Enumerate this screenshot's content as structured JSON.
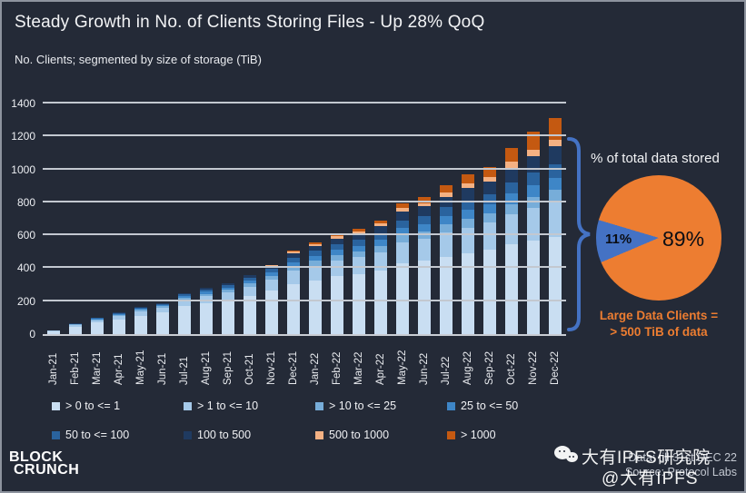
{
  "header": {
    "title": "Steady Growth in No. of Clients Storing Files - Up 28% QoQ",
    "subtitle": "No. Clients; segmented by size of storage (TiB)"
  },
  "chart_data": {
    "type": "bar",
    "stacked": true,
    "categories": [
      "Jan-21",
      "Feb-21",
      "Mar-21",
      "Apr-21",
      "May-21",
      "Jun-21",
      "Jul-21",
      "Aug-21",
      "Sep-21",
      "Oct-21",
      "Nov-21",
      "Dec-21",
      "Jan-22",
      "Feb-22",
      "Mar-22",
      "Apr-22",
      "May-22",
      "Jun-22",
      "Jul-22",
      "Aug-22",
      "Sep-22",
      "Oct-22",
      "Nov-22",
      "Dec-22"
    ],
    "series": [
      {
        "name": "> 0 to <= 1",
        "color": "#c9def2",
        "values": [
          17,
          46,
          69,
          90,
          113,
          130,
          169,
          186,
          203,
          230,
          263,
          304,
          327,
          351,
          366,
          386,
          430,
          444,
          470,
          491,
          514,
          545,
          568,
          589
        ]
      },
      {
        "name": "> 1 to <= 10",
        "color": "#a5c9e9",
        "values": [
          4,
          10,
          16,
          21,
          26,
          30,
          40,
          45,
          50,
          58,
          67,
          81,
          89,
          97,
          102,
          110,
          127,
          133,
          145,
          155,
          162,
          181,
          197,
          210
        ]
      },
      {
        "name": "> 10 to <= 25",
        "color": "#77add9",
        "values": [
          1,
          3,
          5,
          6,
          8,
          9,
          12,
          14,
          16,
          19,
          22,
          27,
          30,
          32,
          35,
          38,
          44,
          46,
          51,
          55,
          57,
          64,
          70,
          75
        ]
      },
      {
        "name": "25 to <= 50",
        "color": "#3e86c7",
        "values": [
          1,
          2,
          4,
          5,
          7,
          8,
          11,
          13,
          15,
          18,
          22,
          26,
          29,
          32,
          34,
          37,
          43,
          45,
          50,
          54,
          56,
          63,
          69,
          74
        ]
      },
      {
        "name": "50 to <= 100",
        "color": "#2a639e",
        "values": [
          1,
          2,
          3,
          4,
          6,
          7,
          10,
          12,
          14,
          17,
          21,
          26,
          30,
          33,
          36,
          39,
          46,
          49,
          54,
          58,
          61,
          69,
          76,
          82
        ]
      },
      {
        "name": "100 to 500",
        "color": "#1f3a60",
        "values": [
          1,
          2,
          3,
          4,
          5,
          6,
          8,
          10,
          12,
          15,
          20,
          28,
          32,
          36,
          40,
          45,
          55,
          58,
          65,
          72,
          75,
          88,
          100,
          110
        ]
      },
      {
        "name": "500 to 1000",
        "color": "#f4b183",
        "values": [
          0,
          0,
          0,
          0,
          0,
          0,
          0,
          0,
          0,
          3,
          5,
          8,
          10,
          12,
          12,
          15,
          20,
          20,
          25,
          30,
          30,
          35,
          40,
          40
        ]
      },
      {
        "name": "> 1000",
        "color": "#c45911",
        "values": [
          0,
          0,
          0,
          0,
          0,
          0,
          0,
          0,
          0,
          0,
          0,
          5,
          8,
          12,
          15,
          20,
          30,
          35,
          45,
          55,
          60,
          85,
          110,
          130
        ]
      }
    ],
    "totals": [
      25,
      65,
      100,
      130,
      165,
      190,
      250,
      280,
      310,
      360,
      420,
      505,
      555,
      605,
      640,
      690,
      795,
      830,
      905,
      970,
      1015,
      1130,
      1230,
      1310
    ],
    "ylim": [
      0,
      1400
    ],
    "yticks": [
      0,
      200,
      400,
      600,
      800,
      1000,
      1200,
      1400
    ],
    "grid": true,
    "legend_position": "bottom"
  },
  "legend": {
    "items": [
      {
        "label": "> 0 to <= 1",
        "color": "#c9def2"
      },
      {
        "label": "> 1 to <= 10",
        "color": "#a5c9e9"
      },
      {
        "label": "> 10 to <= 25",
        "color": "#77add9"
      },
      {
        "label": "25 to <= 50",
        "color": "#3e86c7"
      },
      {
        "label": "50 to <= 100",
        "color": "#2a639e"
      },
      {
        "label": "100 to 500",
        "color": "#1f3a60"
      },
      {
        "label": "500 to 1000",
        "color": "#f4b183"
      },
      {
        "label": "> 1000",
        "color": "#c45911"
      }
    ]
  },
  "pie": {
    "title": "% of total data stored",
    "slices": [
      {
        "label": "11%",
        "value": 11,
        "color": "#4472c4"
      },
      {
        "label": "89%",
        "value": 89,
        "color": "#ed7d31"
      }
    ],
    "start_angle_deg": 247,
    "label_small": "11%",
    "label_big": "89%",
    "note_line1": "Large Data Clients =",
    "note_line2": "> 500 TiB of data",
    "brace_color": "#4472c4"
  },
  "footer": {
    "logo_line1": "BLOCK",
    "logo_line2": "CRUNCH",
    "data_note": "Data: till 31st DEC 22",
    "source": "Source: Protocol Labs",
    "watermark_line1": "大有IPFS研究院",
    "watermark_line2": "@大有IPFS"
  },
  "colors": {
    "background": "#242a37",
    "gridline": "#c3c8d0",
    "accent_orange": "#ed7d31",
    "accent_blue": "#4472c4"
  }
}
